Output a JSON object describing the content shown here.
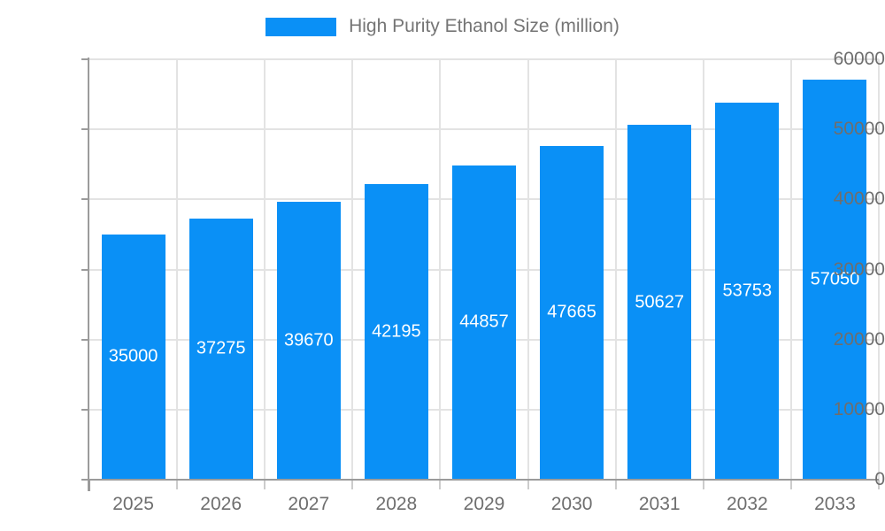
{
  "legend": {
    "label": "High Purity Ethanol Size (million)"
  },
  "colors": {
    "bar": "#0A90F6",
    "axis": "#9B9B9B",
    "grid": "#E3E3E3",
    "minor_tick": "#CCCCCC",
    "tick_label_text": "#6E6E6E",
    "value_label_text": "#FFFFFF",
    "legend_text": "#757575",
    "background": "#FFFFFF"
  },
  "chart_data": {
    "type": "bar",
    "title": "High Purity Ethanol Size (million)",
    "categories": [
      "2025",
      "2026",
      "2027",
      "2028",
      "2029",
      "2030",
      "2031",
      "2032",
      "2033"
    ],
    "values": [
      35000,
      37275,
      39670,
      42195,
      44857,
      47665,
      50627,
      53753,
      57050
    ],
    "xlabel": "",
    "ylabel": "",
    "ylim": [
      0,
      60000
    ],
    "yticks": [
      0,
      10000,
      20000,
      30000,
      40000,
      50000,
      60000
    ],
    "grid": true,
    "legend_position": "top-center",
    "value_labels": "inside-middle-white"
  }
}
